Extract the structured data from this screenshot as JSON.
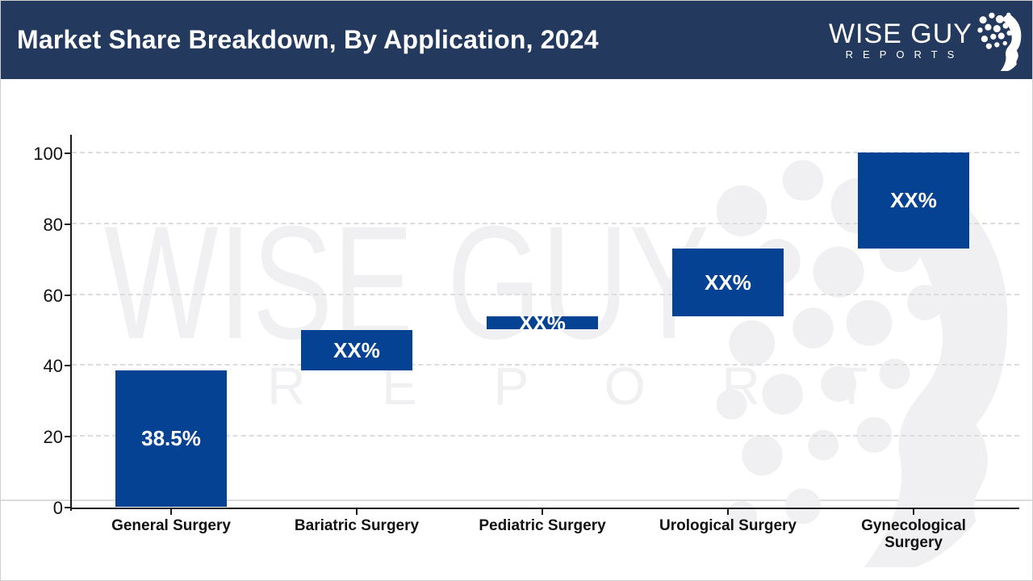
{
  "header": {
    "title": "Market Share Breakdown, By Application, 2024",
    "brand": {
      "name": "WISE GUY",
      "sub": "REPORTS"
    }
  },
  "watermark": {
    "name": "WISE GUY",
    "sub": "R E P O R T S"
  },
  "chart_data": {
    "type": "waterfall",
    "title": "Market Share Breakdown, By Application, 2024",
    "categories": [
      "General Surgery",
      "Bariatric Surgery",
      "Pediatric Surgery",
      "Urological Surgery",
      "Gynecological Surgery"
    ],
    "segments": [
      {
        "category": "General Surgery",
        "start": 0,
        "end": 38.5,
        "label": "38.5%"
      },
      {
        "category": "Bariatric Surgery",
        "start": 38.5,
        "end": 50,
        "label": "XX%"
      },
      {
        "category": "Pediatric Surgery",
        "start": 50,
        "end": 53.8,
        "label": "XX%"
      },
      {
        "category": "Urological Surgery",
        "start": 53.8,
        "end": 73,
        "label": "XX%"
      },
      {
        "category": "Gynecological Surgery",
        "start": 73,
        "end": 100,
        "label": "XX%"
      }
    ],
    "y_ticks": [
      0,
      20,
      40,
      60,
      80,
      100
    ],
    "ylim": [
      0,
      105
    ],
    "xlabel": "",
    "ylabel": "",
    "legend": "none",
    "grid": {
      "horizontal": true,
      "style": "dashed",
      "color": "#dcdcdc"
    },
    "bar_color": "#054293",
    "value_label_color": "#ffffff"
  },
  "colors": {
    "header_bg": "#24395E",
    "bar": "#054293",
    "watermark": "#f0f0f3",
    "axis": "#1a1a1a"
  }
}
